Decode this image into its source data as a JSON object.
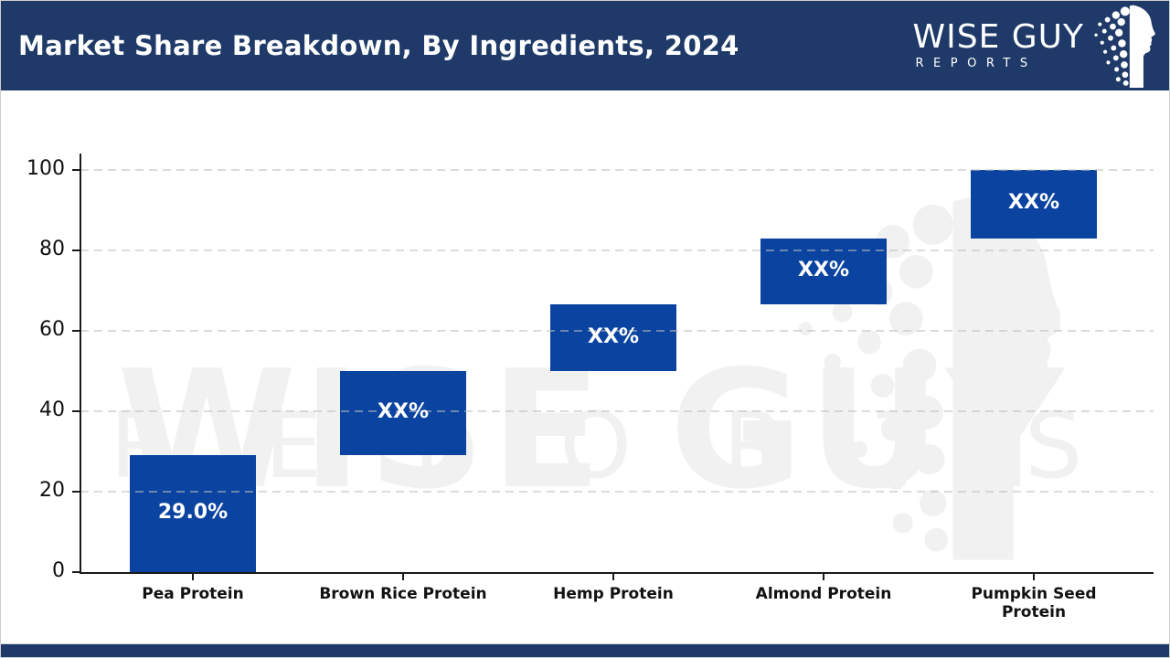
{
  "header": {
    "title": "Market Share Breakdown, By Ingredients, 2024",
    "logo": {
      "line1": "WISE GUY",
      "line2": "REPORTS"
    }
  },
  "watermark": {
    "line1": "WISE GUY",
    "line2": "R E P O R T S"
  },
  "chart_data": {
    "type": "bar",
    "subtype": "waterfall",
    "title": "Market Share Breakdown, By Ingredients, 2024",
    "xlabel": "",
    "ylabel": "",
    "categories": [
      "Pea Protein",
      "Brown Rice Protein",
      "Hemp Protein",
      "Almond Protein",
      "Pumpkin Seed Protein"
    ],
    "segments": [
      {
        "category": "Pea Protein",
        "start": 0,
        "end": 29,
        "label": "29.0%"
      },
      {
        "category": "Brown Rice Protein",
        "start": 29,
        "end": 50,
        "label": "XX%"
      },
      {
        "category": "Hemp Protein",
        "start": 50,
        "end": 66.5,
        "label": "XX%"
      },
      {
        "category": "Almond Protein",
        "start": 66.5,
        "end": 83,
        "label": "XX%"
      },
      {
        "category": "Pumpkin Seed Protein",
        "start": 83,
        "end": 100,
        "label": "XX%"
      }
    ],
    "y_ticks": [
      0,
      20,
      40,
      60,
      80,
      100
    ],
    "ylim": [
      0,
      104
    ],
    "grid": "horizontal-dashed",
    "legend": "none"
  },
  "colors": {
    "header_bg": "#1f3a68",
    "footer_bg": "#1f3a68",
    "bar": "#0a43a0",
    "bar_label": "#ffffff",
    "grid": "#cdcdcd",
    "axis": "#1a1a1a",
    "tick_text": "#111111",
    "watermark": "#f1f1f1"
  }
}
